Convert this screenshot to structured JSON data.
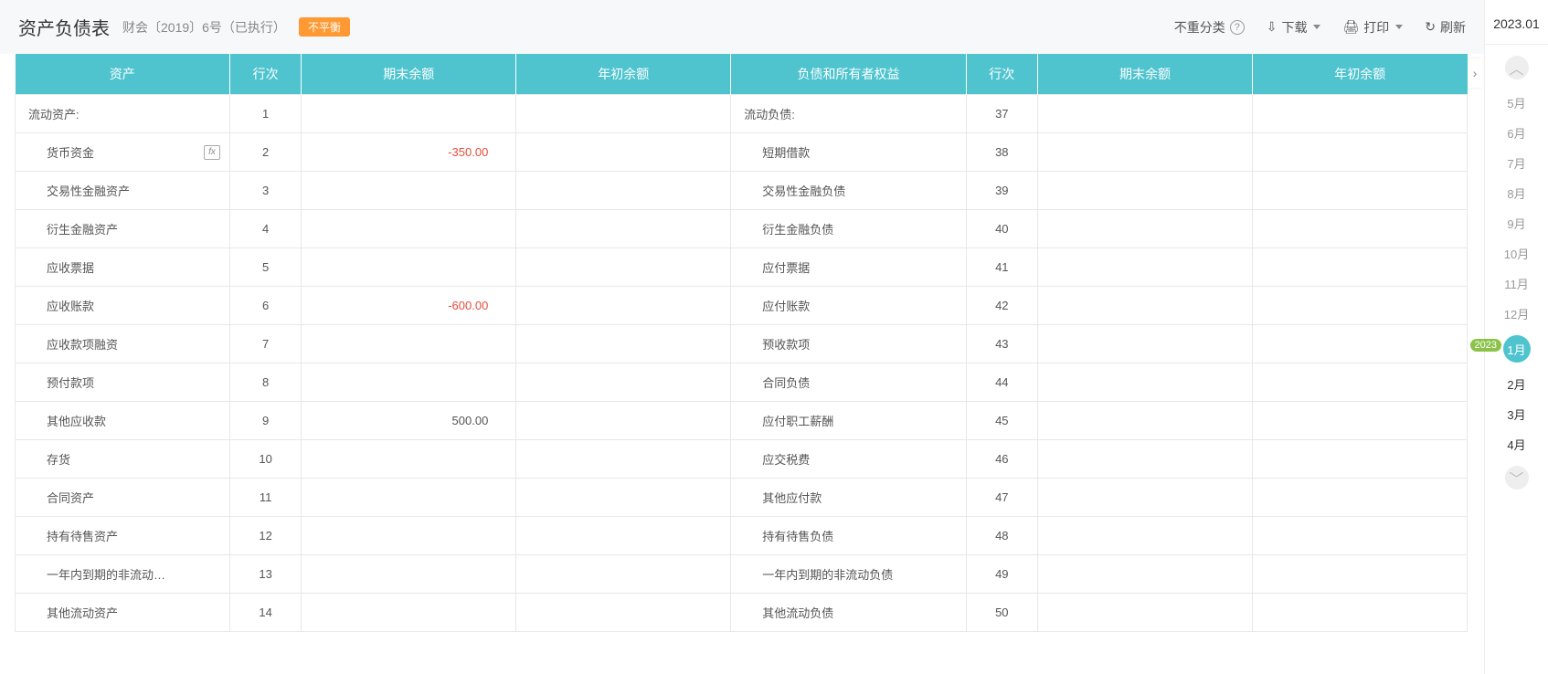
{
  "header": {
    "title": "资产负债表",
    "subtitle": "财会〔2019〕6号（已执行）",
    "badge": "不平衡"
  },
  "actions": {
    "reclass": "不重分类",
    "download": "下载",
    "print": "打印",
    "refresh": "刷新"
  },
  "columns": {
    "asset": "资产",
    "line1": "行次",
    "end1": "期末余额",
    "begin1": "年初余额",
    "liab": "负债和所有者权益",
    "line2": "行次",
    "end2": "期末余额",
    "begin2": "年初余额"
  },
  "rows": [
    {
      "a": "流动资产:",
      "ai": 0,
      "al": "1",
      "ae": "",
      "ab": "",
      "fx": false,
      "l": "流动负债:",
      "li": 0,
      "ll": "37",
      "le": "",
      "lb": ""
    },
    {
      "a": "货币资金",
      "ai": 1,
      "al": "2",
      "ae": "-350.00",
      "ab": "",
      "fx": true,
      "aeNeg": true,
      "l": "短期借款",
      "li": 1,
      "ll": "38",
      "le": "",
      "lb": ""
    },
    {
      "a": "交易性金融资产",
      "ai": 1,
      "al": "3",
      "ae": "",
      "ab": "",
      "fx": false,
      "l": "交易性金融负债",
      "li": 1,
      "ll": "39",
      "le": "",
      "lb": ""
    },
    {
      "a": "衍生金融资产",
      "ai": 1,
      "al": "4",
      "ae": "",
      "ab": "",
      "fx": false,
      "l": "衍生金融负债",
      "li": 1,
      "ll": "40",
      "le": "",
      "lb": ""
    },
    {
      "a": "应收票据",
      "ai": 1,
      "al": "5",
      "ae": "",
      "ab": "",
      "fx": false,
      "l": "应付票据",
      "li": 1,
      "ll": "41",
      "le": "",
      "lb": ""
    },
    {
      "a": "应收账款",
      "ai": 1,
      "al": "6",
      "ae": "-600.00",
      "ab": "",
      "fx": false,
      "aeNeg": true,
      "l": "应付账款",
      "li": 1,
      "ll": "42",
      "le": "",
      "lb": ""
    },
    {
      "a": "应收款项融资",
      "ai": 1,
      "al": "7",
      "ae": "",
      "ab": "",
      "fx": false,
      "l": "预收款项",
      "li": 1,
      "ll": "43",
      "le": "",
      "lb": ""
    },
    {
      "a": "预付款项",
      "ai": 1,
      "al": "8",
      "ae": "",
      "ab": "",
      "fx": false,
      "l": "合同负债",
      "li": 1,
      "ll": "44",
      "le": "",
      "lb": ""
    },
    {
      "a": "其他应收款",
      "ai": 1,
      "al": "9",
      "ae": "500.00",
      "ab": "",
      "fx": false,
      "l": "应付职工薪酬",
      "li": 1,
      "ll": "45",
      "le": "",
      "lb": ""
    },
    {
      "a": "存货",
      "ai": 1,
      "al": "10",
      "ae": "",
      "ab": "",
      "fx": false,
      "l": "应交税费",
      "li": 1,
      "ll": "46",
      "le": "",
      "lb": ""
    },
    {
      "a": "合同资产",
      "ai": 1,
      "al": "11",
      "ae": "",
      "ab": "",
      "fx": false,
      "l": "其他应付款",
      "li": 1,
      "ll": "47",
      "le": "",
      "lb": ""
    },
    {
      "a": "持有待售资产",
      "ai": 1,
      "al": "12",
      "ae": "",
      "ab": "",
      "fx": false,
      "l": "持有待售负债",
      "li": 1,
      "ll": "48",
      "le": "",
      "lb": ""
    },
    {
      "a": "一年内到期的非流动…",
      "ai": 1,
      "al": "13",
      "ae": "",
      "ab": "",
      "fx": false,
      "l": "一年内到期的非流动负债",
      "li": 1,
      "ll": "49",
      "le": "",
      "lb": ""
    },
    {
      "a": "其他流动资产",
      "ai": 1,
      "al": "14",
      "ae": "",
      "ab": "",
      "fx": false,
      "l": "其他流动负债",
      "li": 1,
      "ll": "50",
      "le": "",
      "lb": ""
    }
  ],
  "side": {
    "current": "2023.01",
    "year_tag": "2023",
    "items": [
      {
        "label": "5月",
        "cls": ""
      },
      {
        "label": "6月",
        "cls": ""
      },
      {
        "label": "7月",
        "cls": ""
      },
      {
        "label": "8月",
        "cls": ""
      },
      {
        "label": "9月",
        "cls": ""
      },
      {
        "label": "10月",
        "cls": ""
      },
      {
        "label": "11月",
        "cls": ""
      },
      {
        "label": "12月",
        "cls": ""
      }
    ],
    "active": "1月",
    "future": [
      {
        "label": "2月"
      },
      {
        "label": "3月"
      },
      {
        "label": "4月"
      }
    ]
  },
  "colors": {
    "header_bg": "#4fc4cf",
    "badge_bg": "#ff9933",
    "neg_text": "#e74c3c",
    "year_tag_bg": "#8bc34a"
  }
}
